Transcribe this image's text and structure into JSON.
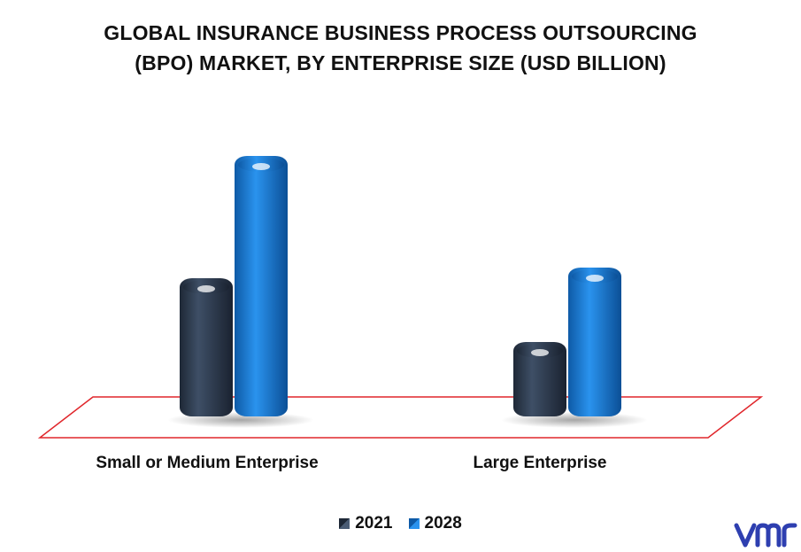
{
  "title_lines": [
    "GLOBAL INSURANCE BUSINESS PROCESS OUTSOURCING",
    "(BPO) MARKET, BY ENTERPRISE SIZE (USD BILLION)"
  ],
  "chart_data": {
    "type": "bar",
    "title": "GLOBAL INSURANCE BUSINESS PROCESS OUTSOURCING (BPO) MARKET, BY ENTERPRISE SIZE (USD BILLION)",
    "categories": [
      "Small or Medium Enterprise",
      "Large Enterprise"
    ],
    "series": [
      {
        "name": "2021",
        "values": [
          5.2,
          2.8
        ],
        "color": "#2c3a4c"
      },
      {
        "name": "2028",
        "values": [
          9.8,
          5.6
        ],
        "color": "#1a78d4"
      }
    ],
    "ylim": [
      0,
      10
    ],
    "grid": false,
    "legend_position": "bottom-center",
    "floor_color": "#e0262b"
  },
  "logo": {
    "icon": "vmr-logo",
    "color": "#2e3fb0"
  }
}
